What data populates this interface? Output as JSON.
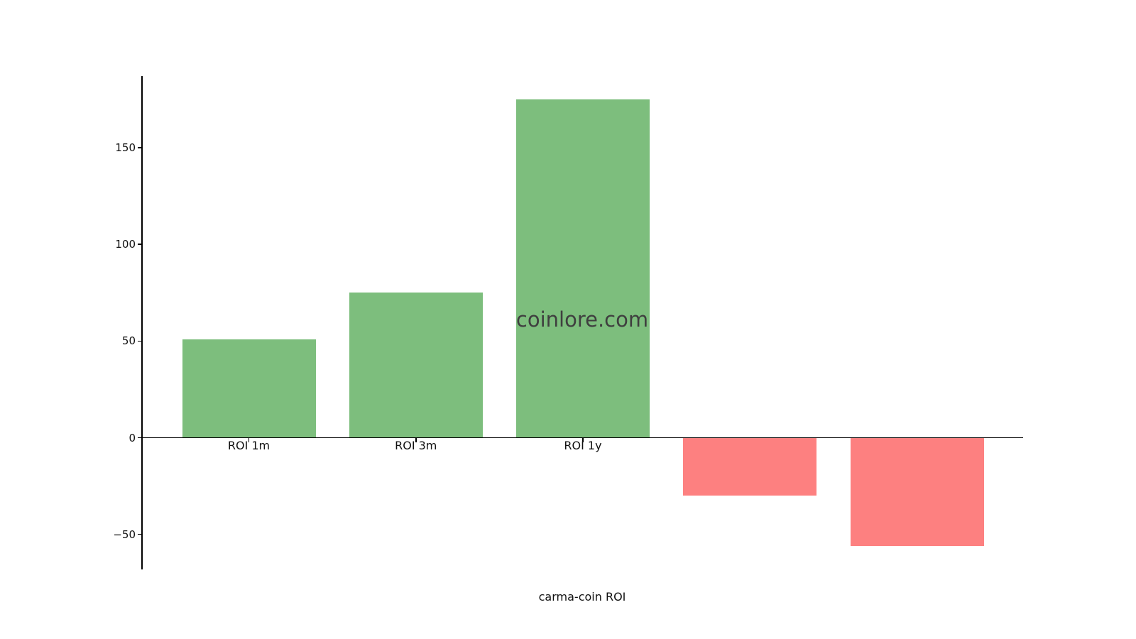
{
  "chart_data": {
    "type": "bar",
    "title": "carma-coin ROI",
    "categories": [
      "ROI 1m",
      "ROI 3m",
      "ROI 1y",
      "",
      ""
    ],
    "values": [
      51,
      75,
      175,
      -30,
      -56
    ],
    "positive_color": "#7dbe7d",
    "negative_color": "#fd8080",
    "axis_color": "#000000",
    "tick_label_color": "#111111",
    "yticks": [
      150,
      100,
      50,
      0,
      -50
    ],
    "ylim": [
      -68,
      187
    ],
    "xlabel": "",
    "ylabel": "",
    "grid": false,
    "legend": false
  },
  "watermark": {
    "text": "coinlore.com",
    "color": "#3f3f3f"
  }
}
